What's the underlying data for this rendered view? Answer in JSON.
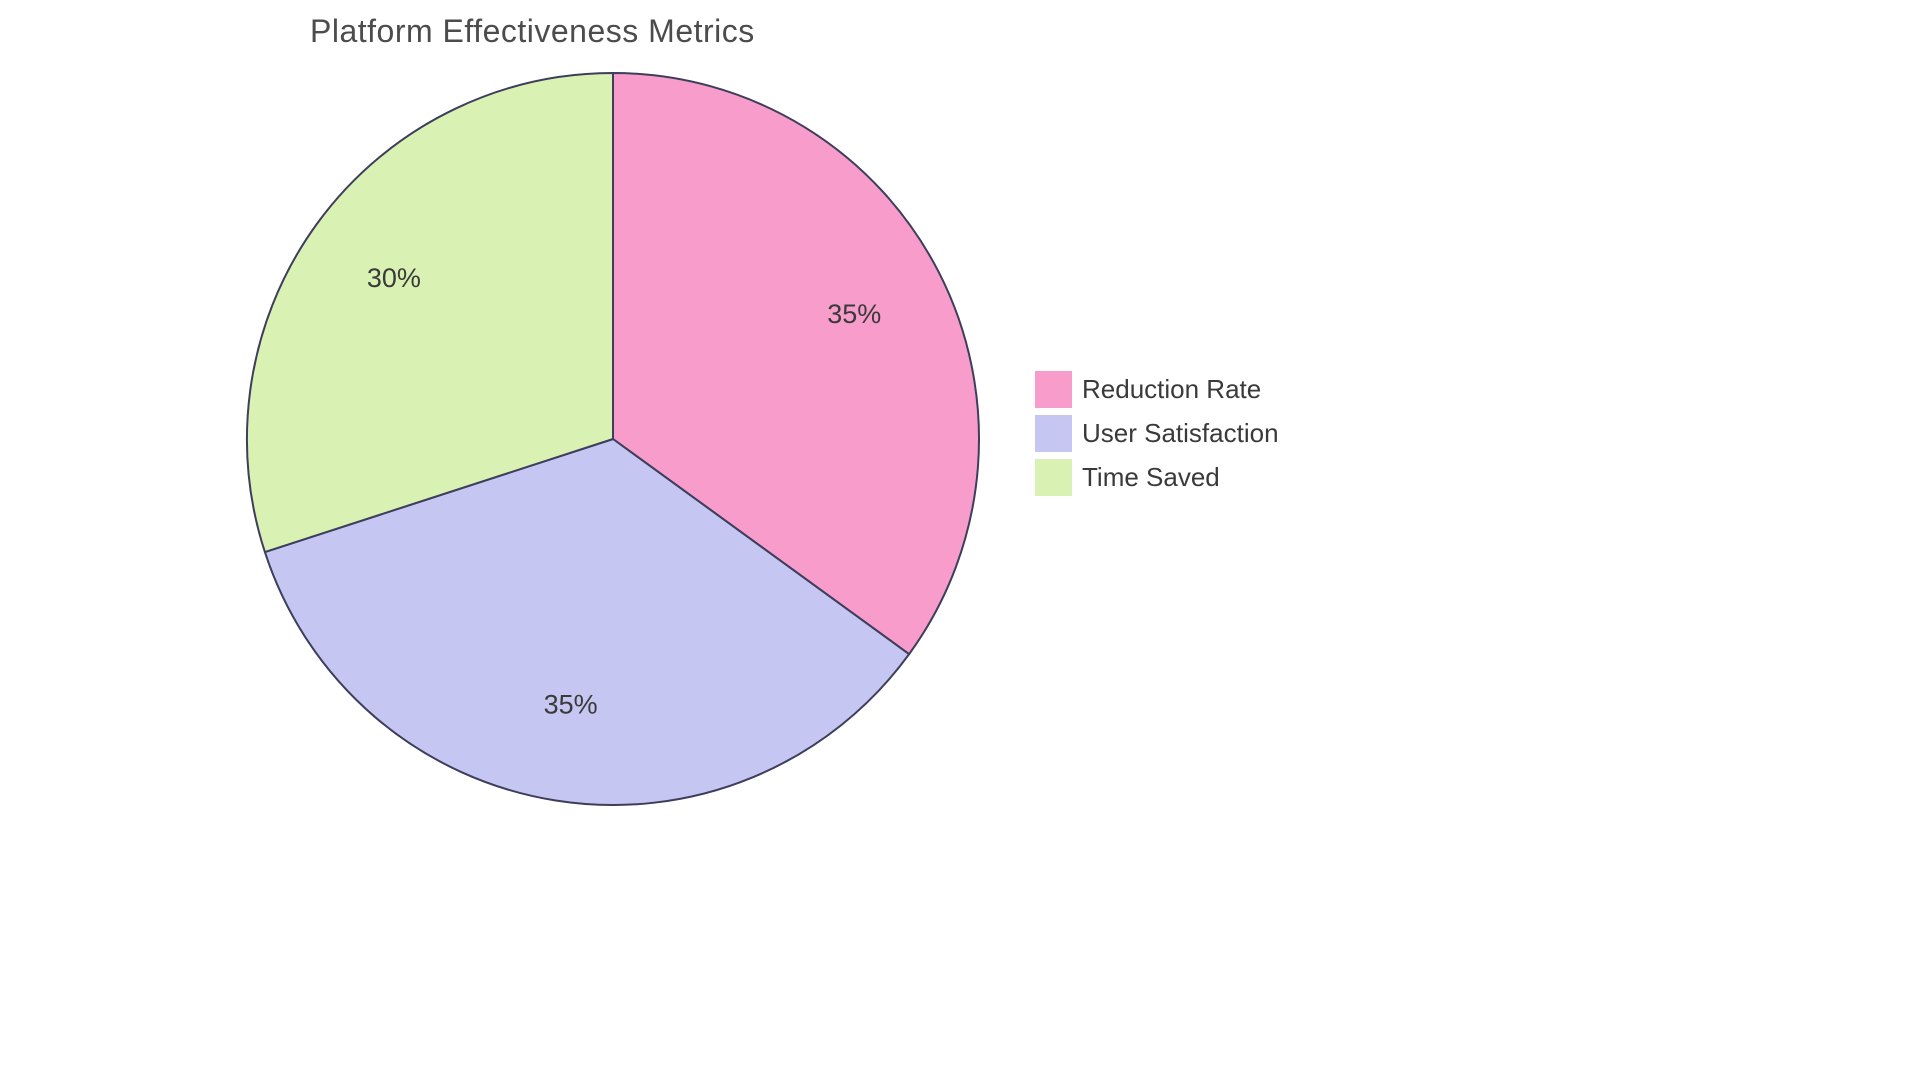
{
  "chart_data": {
    "type": "pie",
    "title": "Platform Effectiveness Metrics",
    "labels": [
      "Reduction Rate",
      "User Satisfaction",
      "Time Saved"
    ],
    "values": [
      35,
      35,
      30
    ],
    "percent_labels": [
      "35%",
      "35%",
      "30%"
    ],
    "colors": [
      "#f89dcb",
      "#c6c6f2",
      "#d9f2b3"
    ],
    "slice_outline_color": "#3d3d5c",
    "label_color": "#3a3a3a",
    "title_color": "#4c4c4c",
    "legend_position": "right",
    "start_angle_deg": 0,
    "direction": "clockwise",
    "background_color": "#ffffff"
  }
}
